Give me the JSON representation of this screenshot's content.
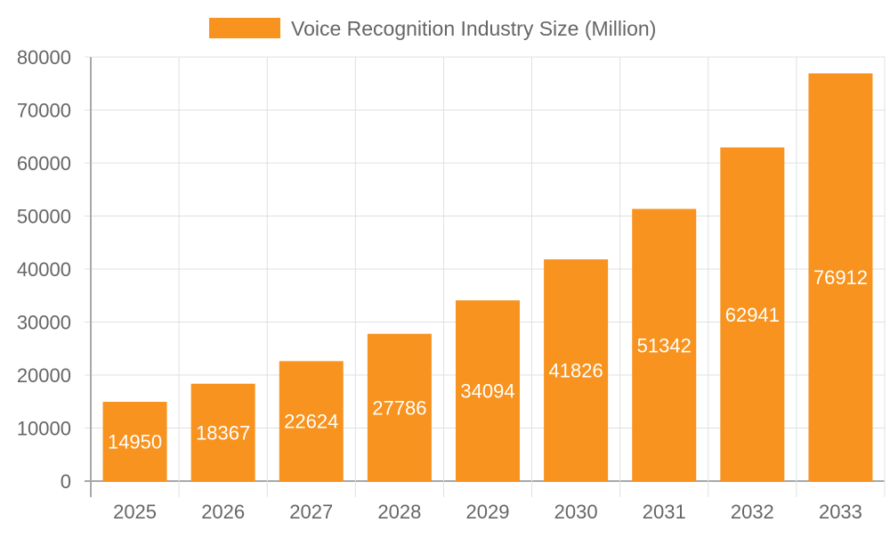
{
  "chart_data": {
    "type": "bar",
    "legend": {
      "label": "Voice Recognition Industry Size (Million)",
      "placement": "top"
    },
    "categories": [
      "2025",
      "2026",
      "2027",
      "2028",
      "2029",
      "2030",
      "2031",
      "2032",
      "2033"
    ],
    "series": [
      {
        "name": "Voice Recognition Industry Size (Million)",
        "values": [
          14950,
          18367,
          22624,
          27786,
          34094,
          41826,
          51342,
          62941,
          76912
        ],
        "color": "#f7931e"
      }
    ],
    "ylim": [
      0,
      80000
    ],
    "yticks": [
      "0",
      "10000",
      "20000",
      "30000",
      "40000",
      "50000",
      "60000",
      "70000",
      "80000"
    ],
    "grid": true,
    "data_labels": true,
    "colors": {
      "bar": "#f7931e",
      "grid": "#e0e0e0",
      "axis": "#a8a8a8",
      "text": "#666666",
      "label": "#ffffff"
    }
  }
}
